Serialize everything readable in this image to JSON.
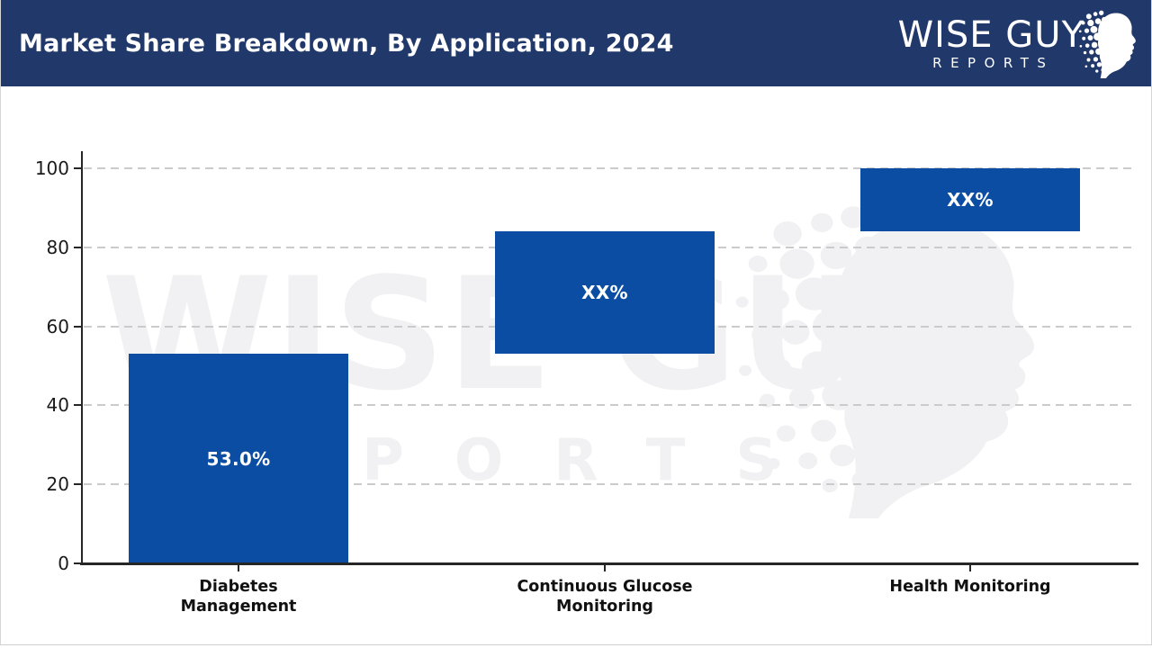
{
  "header": {
    "title": "Market Share Breakdown, By Application, 2024",
    "logo": {
      "primary": "WISE GUY",
      "secondary": "REPORTS"
    }
  },
  "watermark": {
    "line1": "WISE GUY",
    "line2": "REPORTS"
  },
  "colors": {
    "header_bg": "#21386a",
    "bar": "#0b4da2",
    "axis": "#262626",
    "grid": "#cbcbcb",
    "bar_label": "#ffffff",
    "watermark": "#f1f1f3"
  },
  "chart_data": {
    "type": "bar",
    "subtype": "floating-segment-waterfall",
    "title": "Market Share Breakdown, By Application, 2024",
    "categories": [
      "Diabetes Management",
      "Continuous Glucose Monitoring",
      "Health Monitoring"
    ],
    "category_lines": [
      [
        "Diabetes",
        "Management"
      ],
      [
        "Continuous Glucose",
        "Monitoring"
      ],
      [
        "Health Monitoring"
      ]
    ],
    "bars": [
      {
        "category": "Diabetes Management",
        "start": 0,
        "end": 53,
        "label": "53.0%"
      },
      {
        "category": "Continuous Glucose Monitoring",
        "start": 53,
        "end": 84,
        "label": "XX%"
      },
      {
        "category": "Health Monitoring",
        "start": 84,
        "end": 100,
        "label": "XX%"
      }
    ],
    "yticks": [
      0,
      20,
      40,
      60,
      80,
      100
    ],
    "ylim": [
      0,
      104
    ],
    "xlabel": "",
    "ylabel": "",
    "grid": "horizontal-dashed",
    "legend": "none",
    "bar_color": "#0b4da2",
    "label_color": "#ffffff"
  }
}
